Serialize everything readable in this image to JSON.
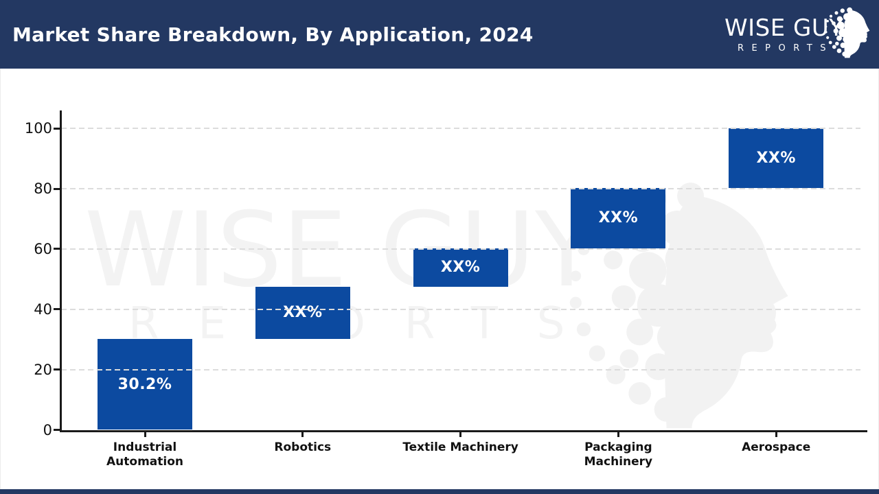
{
  "header": {
    "title": "Market Share Breakdown, By Application, 2024",
    "bg_color": "#233862",
    "logo": {
      "line1": "WISE GUY",
      "line2": "REPORTS"
    }
  },
  "watermark": {
    "line1": "WISE GUY",
    "line2": "REPORTS"
  },
  "chart_data": {
    "type": "bar",
    "subtype": "waterfall",
    "title": "Market Share Breakdown, By Application, 2024",
    "categories": [
      "Industrial\nAutomation",
      "Robotics",
      "Textile Machinery",
      "Packaging\nMachinery",
      "Aerospace"
    ],
    "segments": [
      {
        "category": "Industrial Automation",
        "start": 0,
        "end": 30.2,
        "label": "30.2%"
      },
      {
        "category": "Robotics",
        "start": 30.2,
        "end": 47.5,
        "label": "XX%"
      },
      {
        "category": "Textile Machinery",
        "start": 47.5,
        "end": 60.3,
        "label": "XX%"
      },
      {
        "category": "Packaging Machinery",
        "start": 60.3,
        "end": 80.2,
        "label": "XX%"
      },
      {
        "category": "Aerospace",
        "start": 80.2,
        "end": 100,
        "label": "XX%"
      }
    ],
    "y_ticks": [
      0,
      20,
      40,
      60,
      80,
      100
    ],
    "ylim": [
      0,
      106
    ],
    "xlabel": "",
    "ylabel": "",
    "grid": "horizontal-dashed",
    "legend": "none",
    "bar_color": "#0c4aa0",
    "bar_label_color": "#ffffff",
    "axis_color": "#1a1a1a",
    "grid_color": "#dcdcdc",
    "watermark_color": "#f2f2f2"
  }
}
